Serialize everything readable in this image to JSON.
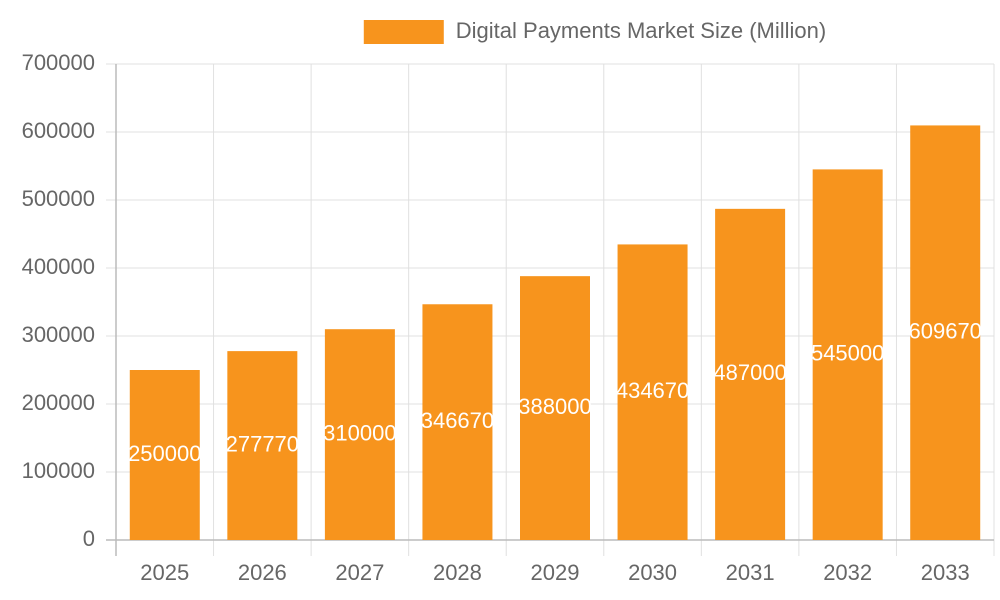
{
  "chart_data": {
    "type": "bar",
    "categories": [
      "2025",
      "2026",
      "2027",
      "2028",
      "2029",
      "2030",
      "2031",
      "2032",
      "2033"
    ],
    "series": [
      {
        "name": "Digital Payments Market Size (Million)",
        "color": "#f7941d",
        "values": [
          250000,
          277770,
          310000,
          346670,
          388000,
          434670,
          487000,
          545000,
          609670
        ]
      }
    ],
    "ylim": [
      0,
      700000
    ],
    "yticks": [
      0,
      100000,
      200000,
      300000,
      400000,
      500000,
      600000,
      700000
    ],
    "grid": true,
    "legend": "top"
  }
}
